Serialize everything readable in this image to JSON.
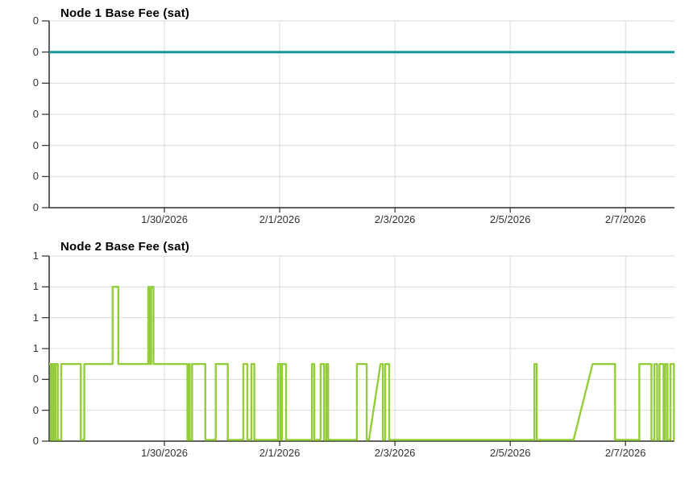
{
  "page": {
    "background": "#FFFFFF"
  },
  "colors": {
    "grid": "#D9D9D9",
    "axis": "#2E2E2E",
    "tick_text": "#333333",
    "node1_line": "#14999C",
    "node2_line": "#94CD3A"
  },
  "chart_data": [
    {
      "type": "line",
      "title": "Node 1 Base Fee (sat)",
      "xlabel": "",
      "ylabel": "",
      "legend": "none",
      "grid": true,
      "line_color": "#14999C",
      "x_epoch_date": "1/28/2026",
      "xlim_days": [
        0,
        10.85
      ],
      "ylim": [
        -0.25,
        0.05
      ],
      "xticks": [
        {
          "t": 2,
          "label": "1/30/2026"
        },
        {
          "t": 4,
          "label": "2/1/2026"
        },
        {
          "t": 6,
          "label": "2/3/2026"
        },
        {
          "t": 8,
          "label": "2/5/2026"
        },
        {
          "t": 10,
          "label": "2/7/2026"
        }
      ],
      "yticks": [
        {
          "v": 0.05,
          "label": "0"
        },
        {
          "v": 0.0,
          "label": "0"
        },
        {
          "v": -0.05,
          "label": "0"
        },
        {
          "v": -0.1,
          "label": "0"
        },
        {
          "v": -0.15,
          "label": "0"
        },
        {
          "v": -0.2,
          "label": "0"
        },
        {
          "v": -0.25,
          "label": "0"
        }
      ],
      "series": [
        {
          "name": "node1_base_fee_sat",
          "constant_value": 0,
          "points": [
            [
              0,
              0
            ],
            [
              10.85,
              0
            ]
          ]
        }
      ]
    },
    {
      "type": "line",
      "title": "Node 2 Base Fee (sat)",
      "xlabel": "",
      "ylabel": "",
      "legend": "none",
      "grid": true,
      "line_color": "#94CD3A",
      "x_epoch_date": "1/28/2026",
      "xlim_days": [
        0,
        10.85
      ],
      "ylim": [
        0,
        1.2
      ],
      "xticks": [
        {
          "t": 2,
          "label": "1/30/2026"
        },
        {
          "t": 4,
          "label": "2/1/2026"
        },
        {
          "t": 6,
          "label": "2/3/2026"
        },
        {
          "t": 8,
          "label": "2/5/2026"
        },
        {
          "t": 10,
          "label": "2/7/2026"
        }
      ],
      "yticks": [
        {
          "v": 1.2,
          "label": "1"
        },
        {
          "v": 1.0,
          "label": "1"
        },
        {
          "v": 0.8,
          "label": "1"
        },
        {
          "v": 0.6,
          "label": "1"
        },
        {
          "v": 0.4,
          "label": "0"
        },
        {
          "v": 0.2,
          "label": "0"
        },
        {
          "v": 0.0,
          "label": "0"
        }
      ],
      "series": [
        {
          "name": "node2_base_fee_sat",
          "points": [
            [
              0,
              0.5
            ],
            [
              0.03,
              0.5
            ],
            [
              0.03,
              0
            ],
            [
              0.06,
              0
            ],
            [
              0.06,
              0.5
            ],
            [
              0.08,
              0.5
            ],
            [
              0.08,
              0
            ],
            [
              0.11,
              0
            ],
            [
              0.11,
              0.5
            ],
            [
              0.15,
              0.5
            ],
            [
              0.15,
              0
            ],
            [
              0.21,
              0
            ],
            [
              0.21,
              0.5
            ],
            [
              0.55,
              0.5
            ],
            [
              0.55,
              0
            ],
            [
              0.61,
              0
            ],
            [
              0.61,
              0.5
            ],
            [
              1.1,
              0.5
            ],
            [
              1.1,
              1
            ],
            [
              1.2,
              1
            ],
            [
              1.2,
              0.5
            ],
            [
              1.72,
              0.5
            ],
            [
              1.72,
              1
            ],
            [
              1.74,
              1
            ],
            [
              1.74,
              0.5
            ],
            [
              1.77,
              0.5
            ],
            [
              1.77,
              1
            ],
            [
              1.81,
              1
            ],
            [
              1.81,
              0.5
            ],
            [
              2.4,
              0.5
            ],
            [
              2.4,
              0
            ],
            [
              2.42,
              0
            ],
            [
              2.42,
              0.5
            ],
            [
              2.44,
              0.5
            ],
            [
              2.44,
              0
            ],
            [
              2.48,
              0
            ],
            [
              2.48,
              0.5
            ],
            [
              2.71,
              0.5
            ],
            [
              2.71,
              0
            ],
            [
              2.89,
              0
            ],
            [
              2.89,
              0.5
            ],
            [
              3.1,
              0.5
            ],
            [
              3.1,
              0
            ],
            [
              3.37,
              0
            ],
            [
              3.37,
              0.5
            ],
            [
              3.44,
              0.5
            ],
            [
              3.44,
              0
            ],
            [
              3.51,
              0
            ],
            [
              3.51,
              0.5
            ],
            [
              3.56,
              0.5
            ],
            [
              3.56,
              0
            ],
            [
              3.97,
              0
            ],
            [
              3.97,
              0.5
            ],
            [
              4.01,
              0.5
            ],
            [
              4.01,
              0
            ],
            [
              4.04,
              0
            ],
            [
              4.04,
              0.5
            ],
            [
              4.11,
              0.5
            ],
            [
              4.11,
              0
            ],
            [
              4.56,
              0
            ],
            [
              4.56,
              0.5
            ],
            [
              4.6,
              0.5
            ],
            [
              4.6,
              0
            ],
            [
              4.71,
              0
            ],
            [
              4.71,
              0.5
            ],
            [
              4.77,
              0.5
            ],
            [
              4.77,
              0
            ],
            [
              4.81,
              0
            ],
            [
              4.81,
              0.5
            ],
            [
              4.84,
              0.5
            ],
            [
              4.84,
              0
            ],
            [
              5.34,
              0
            ],
            [
              5.34,
              0.5
            ],
            [
              5.51,
              0.5
            ],
            [
              5.51,
              0
            ],
            [
              5.55,
              0
            ],
            [
              5.75,
              0.5
            ],
            [
              5.79,
              0.5
            ],
            [
              5.79,
              0
            ],
            [
              5.83,
              0
            ],
            [
              5.83,
              0.5
            ],
            [
              5.9,
              0.5
            ],
            [
              5.9,
              0
            ],
            [
              8.42,
              0
            ],
            [
              8.42,
              0.5
            ],
            [
              8.46,
              0.5
            ],
            [
              8.46,
              0
            ],
            [
              9.1,
              0
            ],
            [
              9.43,
              0.5
            ],
            [
              9.82,
              0.5
            ],
            [
              9.82,
              0
            ],
            [
              10.24,
              0
            ],
            [
              10.24,
              0.5
            ],
            [
              10.45,
              0.5
            ],
            [
              10.45,
              0
            ],
            [
              10.5,
              0
            ],
            [
              10.5,
              0.5
            ],
            [
              10.55,
              0.5
            ],
            [
              10.55,
              0
            ],
            [
              10.59,
              0
            ],
            [
              10.59,
              0.5
            ],
            [
              10.66,
              0.5
            ],
            [
              10.66,
              0
            ],
            [
              10.69,
              0
            ],
            [
              10.69,
              0.5
            ],
            [
              10.73,
              0.5
            ],
            [
              10.73,
              0
            ],
            [
              10.78,
              0
            ],
            [
              10.78,
              0.5
            ],
            [
              10.84,
              0.5
            ],
            [
              10.84,
              0
            ],
            [
              10.85,
              0
            ]
          ]
        }
      ]
    }
  ]
}
